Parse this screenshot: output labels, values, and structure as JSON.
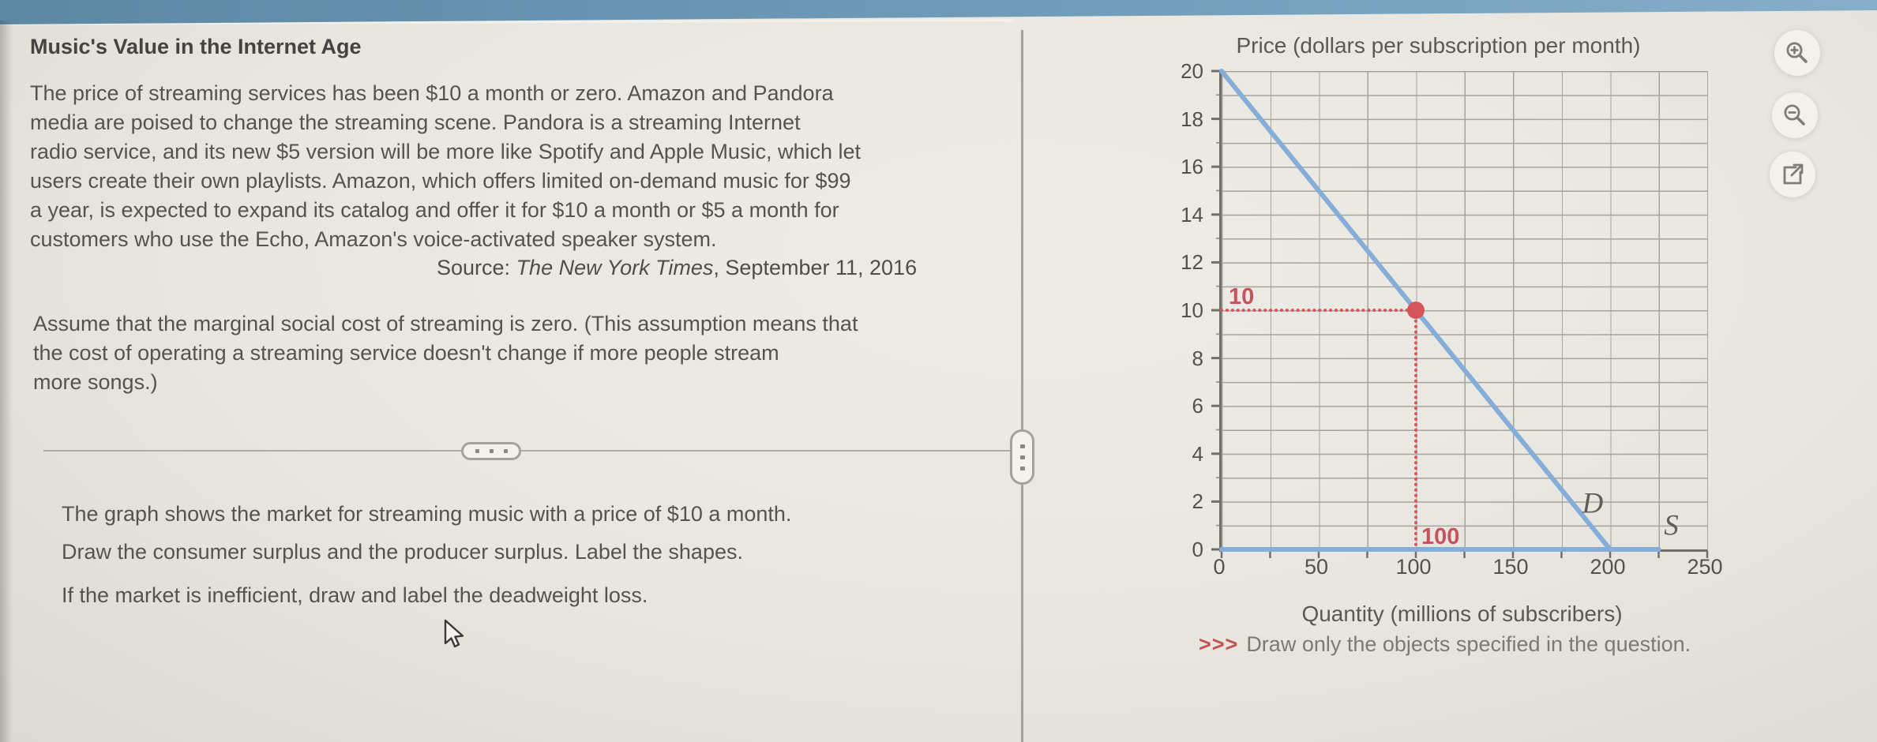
{
  "left_panel": {
    "title": "Music's Value in the Internet Age",
    "paragraph1_lines": [
      "The price of streaming services has been $10 a month or zero. Amazon and Pandora",
      "media are poised to change the streaming scene. Pandora is a streaming Internet",
      "radio service, and its new $5 version will be more like Spotify and Apple Music, which let",
      "users create their own playlists. Amazon, which offers limited on-demand music for $99",
      "a year, is expected to expand its catalog and offer it for $10 a month or $5 a month for",
      "customers who use the Echo, Amazon's voice-activated speaker system."
    ],
    "source": {
      "prefix": "Source: ",
      "work": "The New York Times",
      "suffix": ", September 11, 2016"
    },
    "paragraph2_lines": [
      "Assume that the marginal social cost of streaming is zero. (This assumption means that",
      "the cost of operating a streaming service doesn't change if more people stream",
      "more songs.)"
    ],
    "questions": [
      "The graph shows the market for streaming music with a price of $10 a month.",
      "Draw the consumer surplus and the producer surplus. Label the shapes.",
      "If the market is inefficient, draw and label the deadweight loss."
    ]
  },
  "right_panel": {
    "note": {
      "arrows": ">>>",
      "text": "Draw only the objects specified in the question."
    },
    "tools": [
      "zoom-in",
      "zoom-out",
      "open-in-new-window"
    ]
  },
  "colors": {
    "accent_red": "#d4555c",
    "red_label": "#c8515c",
    "curve_blue": "#85add8",
    "grid": "#a5a39e",
    "axis": "#716f6a",
    "top_band_left": "#5c88a4",
    "top_band_right": "#85aec9"
  },
  "chart_data": {
    "type": "line",
    "title": "Price (dollars per subscription per month)",
    "xlabel": "Quantity (millions of subscribers)",
    "ylabel": "Price (dollars per subscription per month)",
    "xlim": [
      0,
      250
    ],
    "ylim": [
      0,
      20
    ],
    "x_tick_labels": [
      0,
      50,
      100,
      150,
      200,
      250
    ],
    "y_tick_labels": [
      0,
      2,
      4,
      6,
      8,
      10,
      12,
      14,
      16,
      18,
      20
    ],
    "x_grid_step": 25,
    "y_grid_step": 1,
    "grid": true,
    "series": [
      {
        "name": "D",
        "label": "D",
        "points": [
          [
            0,
            20
          ],
          [
            200,
            0
          ]
        ],
        "label_pos": [
          191,
          1.9
        ]
      },
      {
        "name": "S",
        "label": "S",
        "points": [
          [
            0,
            0
          ],
          [
            225,
            0
          ]
        ],
        "label_pos": [
          231.5,
          1.0
        ]
      }
    ],
    "marked_point": {
      "x": 100,
      "y": 10
    },
    "guide_labels": {
      "price": "10",
      "quantity": "100"
    },
    "guides": [
      {
        "type": "horizontal",
        "value": 10,
        "from_x": 0,
        "to_x": 100
      },
      {
        "type": "vertical",
        "value": 100,
        "from_y": 0,
        "to_y": 10
      }
    ]
  }
}
